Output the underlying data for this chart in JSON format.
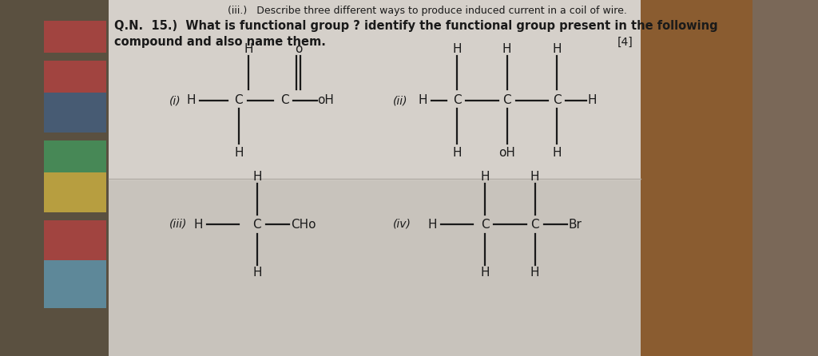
{
  "bg_left_color": "#8a7a6a",
  "bg_right_color": "#a07050",
  "paper_color_top": "#d8d4cc",
  "paper_color_bottom": "#c8c4bc",
  "text_color": "#1a1a1a",
  "header1": "(iii.)   Describe three different ways to produce induced current in a coil of wire.",
  "header2_part1": "Q.N.  15.)  What is functional group ? identify the functional group present in the following",
  "header3": "compound and also name them.",
  "marks": "[4]",
  "fs_header": 11,
  "fs_struct": 11,
  "lw": 1.6
}
